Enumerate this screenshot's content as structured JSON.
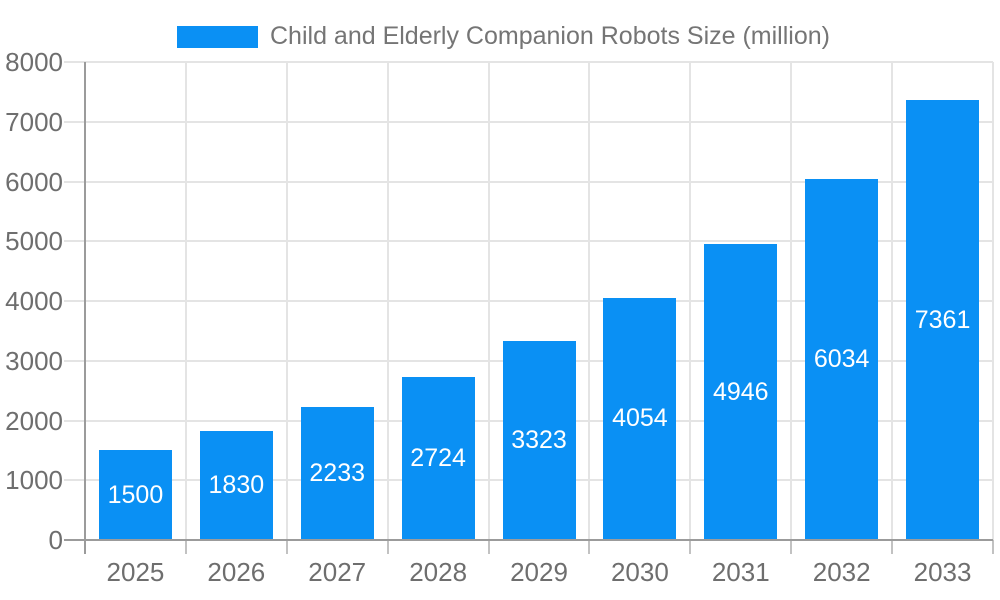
{
  "chart_data": {
    "type": "bar",
    "title": "Child and Elderly Companion Robots Size (million)",
    "categories": [
      "2025",
      "2026",
      "2027",
      "2028",
      "2029",
      "2030",
      "2031",
      "2032",
      "2033"
    ],
    "values": [
      1500,
      1830,
      2233,
      2724,
      3323,
      4054,
      4946,
      6034,
      7361
    ],
    "xlabel": "",
    "ylabel": "",
    "ylim": [
      0,
      8000
    ],
    "yticks": [
      0,
      1000,
      2000,
      3000,
      4000,
      5000,
      6000,
      7000,
      8000
    ],
    "grid": true,
    "legend_position": "top",
    "legend_entries": [
      "Child and Elderly Companion Robots Size (million)"
    ],
    "bar_value_labels": true
  },
  "colors": {
    "bar": "#0A90F4",
    "bar_label": "#ffffff",
    "legend_text": "#757575",
    "axis_text": "#6e6e6e",
    "gridline": "#e4e4e4",
    "axis_line": "#9b9b9b",
    "tick": "#c2c2c2",
    "background": "#ffffff"
  }
}
